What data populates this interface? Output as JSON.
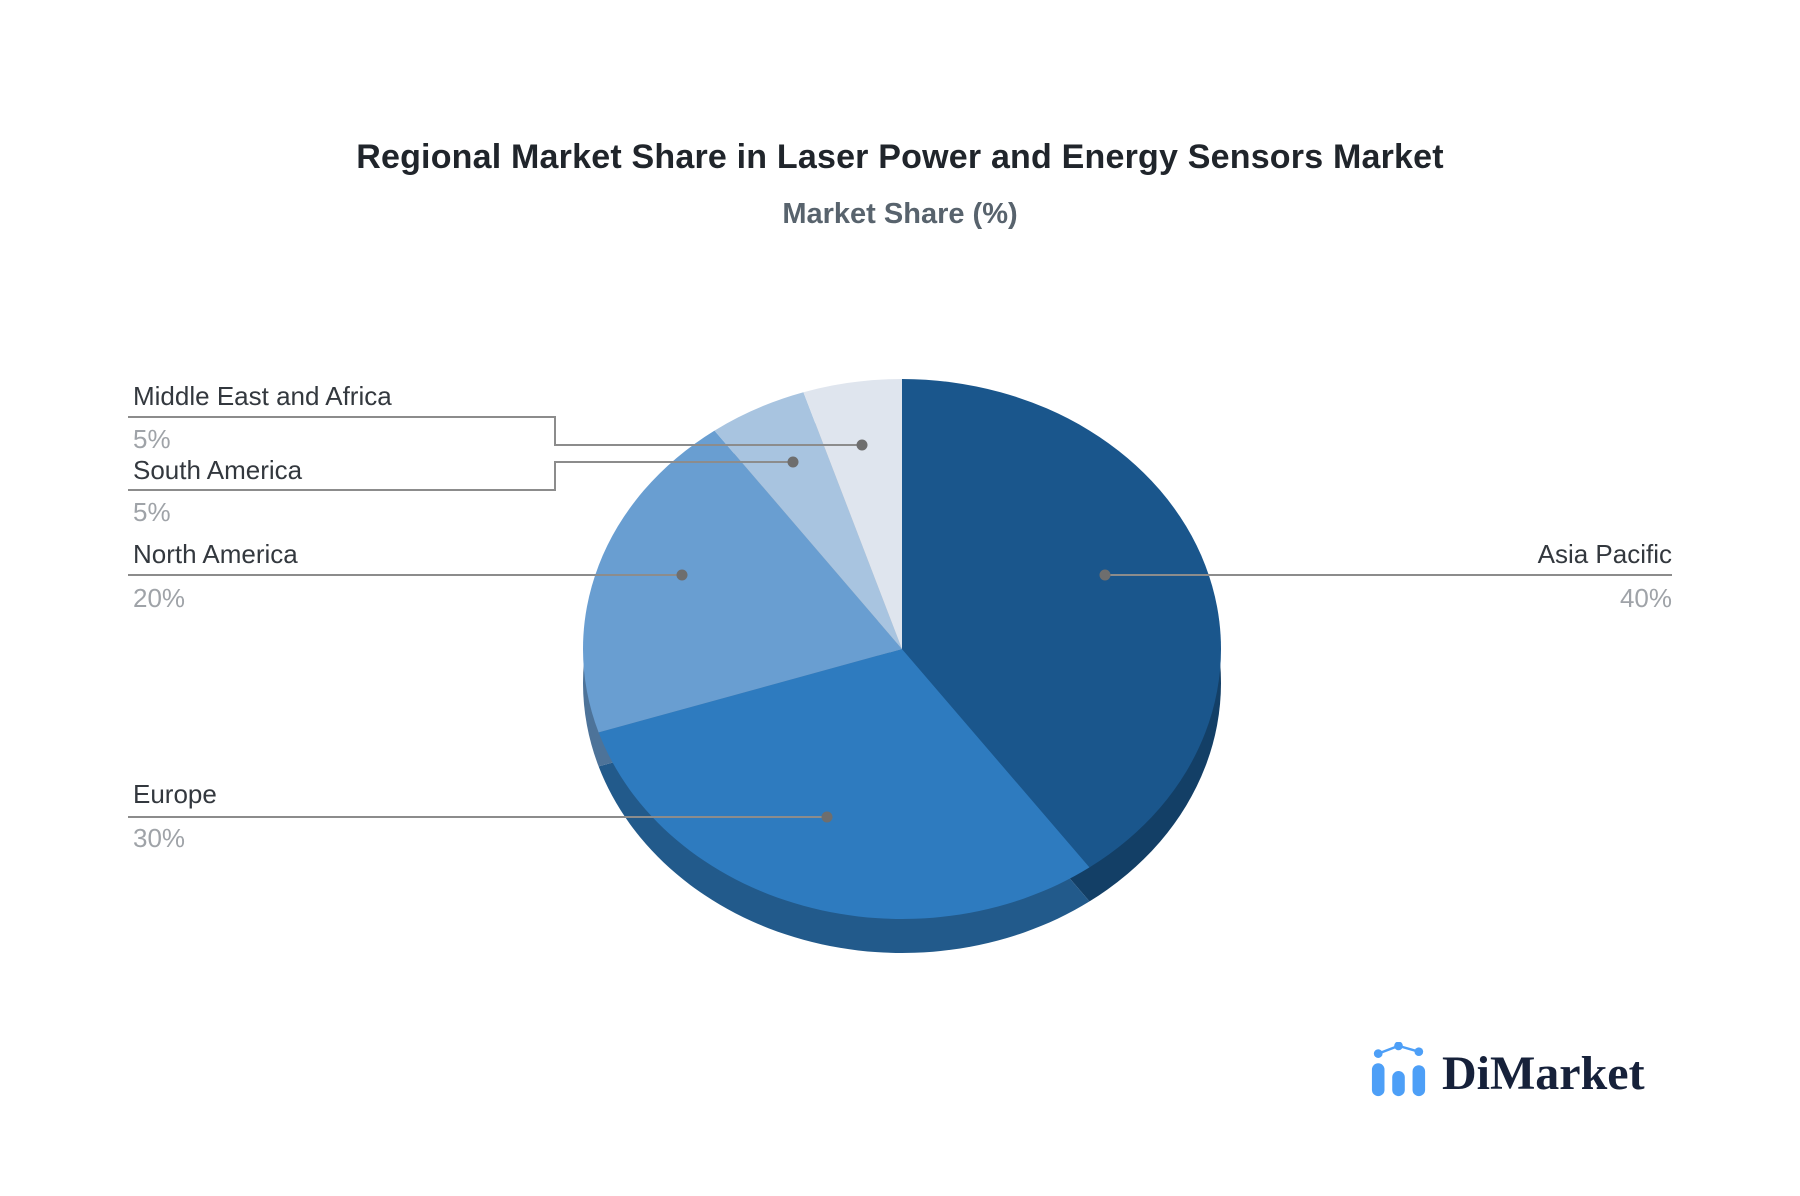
{
  "title": "Regional Market Share in Laser Power and Energy Sensors Market",
  "subtitle": "Market Share (%)",
  "chart_data": {
    "type": "pie",
    "style": "3d",
    "title": "Regional Market Share in Laser Power and Energy Sensors Market",
    "subtitle": "Market Share (%)",
    "unit": "%",
    "start_angle_deg": 0,
    "direction": "clockwise",
    "legend_position": "callout-labels",
    "slices": [
      {
        "label": "Asia Pacific",
        "value": 40,
        "display": "40%",
        "color": "#1A568C",
        "label_side": "right"
      },
      {
        "label": "Europe",
        "value": 30,
        "display": "30%",
        "color": "#2E7BBF",
        "label_side": "left"
      },
      {
        "label": "North America",
        "value": 20,
        "display": "20%",
        "color": "#699ED1",
        "label_side": "left"
      },
      {
        "label": "South America",
        "value": 5,
        "display": "5%",
        "color": "#A8C4E0",
        "label_side": "left"
      },
      {
        "label": "Middle East and Africa",
        "value": 5,
        "display": "5%",
        "color": "#DFE5EE",
        "label_side": "left"
      }
    ],
    "label_color": "#33383E",
    "value_color": "#9FA3A8",
    "leader_line_color": "#8C8C8C",
    "anchor_dot_color": "#6E6E6E"
  },
  "brand": {
    "name": "DiMarket",
    "icon": "bar-chart-logo-icon",
    "icon_color": "#4D9FF7",
    "text_color": "#16213A"
  }
}
